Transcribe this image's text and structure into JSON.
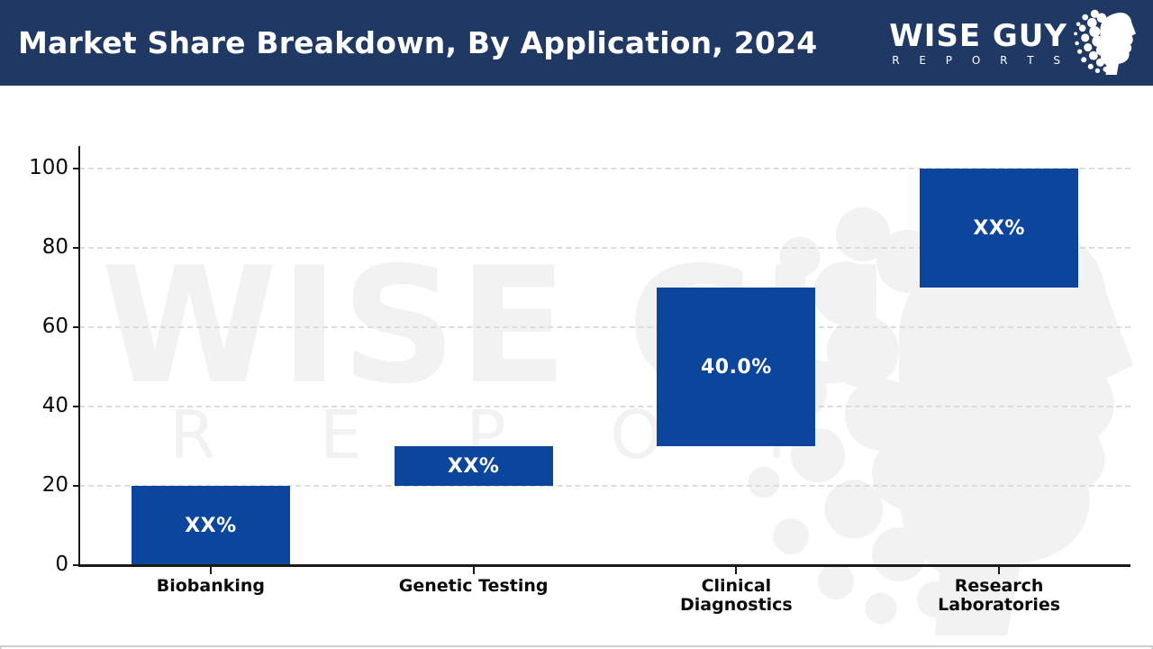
{
  "header": {
    "title": "Market Share Breakdown, By Application, 2024",
    "logo": {
      "name": "WISE GUY",
      "subtitle": "R E P O R T S"
    }
  },
  "watermark": {
    "name": "WISE GUY",
    "subtitle": "R E P O R T S"
  },
  "colors": {
    "header_bg": "#1F3864",
    "bar": "#0C459C",
    "bar_label": "#FFFFFF",
    "grid": "#DCDCDC",
    "axis": "#1A1A1A",
    "watermark": "#F2F2F2"
  },
  "chart_data": {
    "type": "bar",
    "subtype": "floating-range-bars (waterfall-style market share breakdown)",
    "title": "Market Share Breakdown, By Application, 2024",
    "categories": [
      "Biobanking",
      "Genetic Testing",
      "Clinical Diagnostics",
      "Research Laboratories"
    ],
    "series": [
      {
        "name": "Market share segment (%)",
        "ranges": [
          [
            0,
            20
          ],
          [
            20,
            30
          ],
          [
            30,
            70
          ],
          [
            70,
            100
          ]
        ],
        "bar_labels": [
          "XX%",
          "XX%",
          "40.0%",
          "XX%"
        ]
      }
    ],
    "xlabel": "",
    "ylabel": "",
    "ylim": [
      0,
      100
    ],
    "yticks": [
      0,
      20,
      40,
      60,
      80,
      100
    ],
    "grid": "horizontal dashed",
    "legend": "none"
  }
}
